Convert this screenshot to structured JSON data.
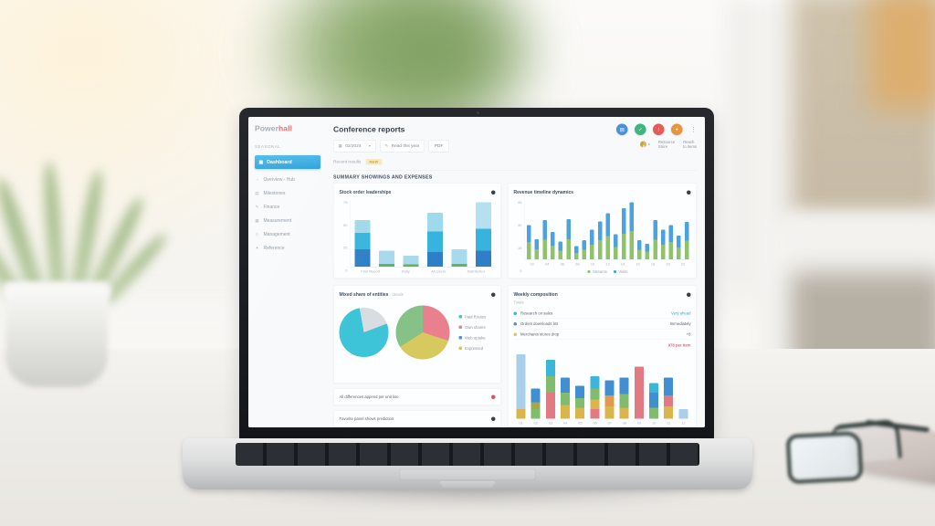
{
  "brand": {
    "part1": "Power",
    "part2": "hall"
  },
  "topbar": {
    "title": "Conference reports",
    "action_icons": [
      {
        "name": "chart-icon",
        "color": "#4a90d9",
        "glyph": "▤"
      },
      {
        "name": "check-icon",
        "color": "#3cb87f",
        "glyph": "✓"
      },
      {
        "name": "alert-icon",
        "color": "#e25c5c",
        "glyph": "!"
      },
      {
        "name": "star-icon",
        "color": "#e89540",
        "glyph": "✦"
      }
    ],
    "overflow": "⋮",
    "account_caret": "▾",
    "account": [
      {
        "line1": "Resource",
        "line2": "Store"
      },
      {
        "line1": "Reach",
        "line2": "to items"
      }
    ]
  },
  "filters": {
    "date": {
      "icon": "▦",
      "label": "02/2024",
      "caret": "▾"
    },
    "range": {
      "icon": "✎",
      "label": "Read this year"
    },
    "export": {
      "label": "PDF"
    }
  },
  "sidebar": {
    "section": "SEASONAL",
    "active": {
      "glyph": "▣",
      "label": "Dashboard"
    },
    "items": [
      {
        "glyph": "◔",
        "label": "Overview - Hub"
      },
      {
        "glyph": "▤",
        "label": "Milestones"
      },
      {
        "glyph": "✎",
        "label": "Finance"
      },
      {
        "glyph": "▦",
        "label": "Measurement"
      },
      {
        "glyph": "◇",
        "label": "Management"
      },
      {
        "glyph": "✦",
        "label": "Reference"
      }
    ]
  },
  "meta": {
    "label": "Recent results",
    "badge": "NEW"
  },
  "section_heading": "SUMMARY SHOWINGS AND EXPENSES",
  "panels": {
    "a": {
      "title": "Stock order leaderships"
    },
    "b": {
      "title": "Revenue timeline dynamics"
    },
    "c": {
      "title": "Mixed share of entities",
      "subtitle": "details",
      "rows": [
        {
          "text": "All differences append per unit line",
          "dot": "#d8545c"
        },
        {
          "text": "Favorite panel shows prediction",
          "dot": "#3a4049"
        }
      ]
    },
    "d": {
      "title": "Weekly composition",
      "subtitle": "Totals",
      "rows": [
        {
          "bullet": "#3ab7d8",
          "label": "Research on sales",
          "value": "Very ahead",
          "value_color": "#3aa0dc"
        },
        {
          "bullet": "#4a90d9",
          "label": "Orders downloads list",
          "value": "Immediately",
          "value_color": "#55606c"
        },
        {
          "bullet": "#e0c34a",
          "label": "Merchants stores drop",
          "value": "+8",
          "value_color": "#55606c"
        }
      ],
      "link": "978 per item"
    }
  },
  "chart_data": [
    {
      "id": "a",
      "type": "bar",
      "stacked": true,
      "title": "Stock order leaderships",
      "y_ticks": [
        "75",
        "50",
        "25",
        "0"
      ],
      "x_labels": [
        "First Report",
        "Daily",
        "All Users",
        "Distributed"
      ],
      "ylim": [
        0,
        100
      ],
      "grid": false,
      "bars": [
        {
          "segments": [
            [
              "#2e7fc6",
              24
            ],
            [
              "#36b4de",
              22
            ],
            [
              "#9fd9ec",
              18
            ]
          ]
        },
        {
          "segments": [
            [
              "#5cb85c",
              4
            ],
            [
              "#a9d9ec",
              18
            ]
          ]
        },
        {
          "segments": [
            [
              "#5cb85c",
              3
            ],
            [
              "#a9d9ec",
              12
            ]
          ]
        },
        {
          "segments": [
            [
              "#2e7fc6",
              20
            ],
            [
              "#36b4de",
              28
            ],
            [
              "#9fd9ec",
              26
            ]
          ]
        },
        {
          "segments": [
            [
              "#5cb85c",
              4
            ],
            [
              "#a9d9ec",
              20
            ]
          ]
        },
        {
          "segments": [
            [
              "#2e7fc6",
              22
            ],
            [
              "#36b4de",
              30
            ],
            [
              "#b5e0f0",
              36
            ]
          ]
        }
      ]
    },
    {
      "id": "b",
      "type": "bar",
      "stacked": true,
      "title": "Revenue timeline dynamics",
      "y_ticks": [
        "45",
        "30",
        "15",
        "0"
      ],
      "x_labels": [
        "02",
        "04",
        "06",
        "08",
        "10",
        "12",
        "14",
        "16",
        "18",
        "20",
        "22"
      ],
      "ylim": [
        0,
        100
      ],
      "grid": false,
      "green": "#8fc36a",
      "blue": "#4aa3dd",
      "green_ratio": 0.5,
      "values": [
        58,
        34,
        66,
        46,
        30,
        68,
        22,
        32,
        50,
        64,
        78,
        42,
        86,
        96,
        32,
        26,
        66,
        50,
        58,
        40,
        63
      ],
      "legend": [
        {
          "color": "#8fc36a",
          "label": "Streams"
        },
        {
          "color": "#4aa3dd",
          "label": "Visits"
        }
      ],
      "legend_position": "bottom"
    },
    {
      "id": "c",
      "type": "pie",
      "title": "Mixed share of entities",
      "pies": [
        {
          "name": "left",
          "size": 108,
          "start": 350,
          "slices": [
            {
              "color": "#d8dde2",
              "value": 22
            },
            {
              "color": "#3dc4d8",
              "value": 78
            }
          ]
        },
        {
          "name": "right",
          "size": 118,
          "start": 0,
          "slices": [
            {
              "color": "#e8808d",
              "value": 30
            },
            {
              "color": "#d6c95e",
              "value": 36
            },
            {
              "color": "#86c288",
              "value": 34
            }
          ]
        }
      ],
      "legend": [
        {
          "color": "#3dc4d8",
          "label": "Paid Routes"
        },
        {
          "color": "#e8808d",
          "label": "Own shares"
        },
        {
          "color": "#4a90d9",
          "label": "Web uptake"
        },
        {
          "color": "#e0c34a",
          "label": "Expressed"
        }
      ],
      "legend_position": "right"
    },
    {
      "id": "d",
      "type": "bar",
      "stacked": true,
      "title": "Weekly composition",
      "x_labels": [
        "01",
        "02",
        "03",
        "04",
        "05",
        "06",
        "07",
        "08",
        "09",
        "10",
        "11",
        "12"
      ],
      "ylim": [
        0,
        100
      ],
      "grid": false,
      "bars": [
        {
          "segments": [
            [
              "#d9b54a",
              14
            ],
            [
              "#aacfe8",
              80
            ]
          ]
        },
        {
          "segments": [
            [
              "#7fbc6b",
              14
            ],
            [
              "#a3a84f",
              10
            ],
            [
              "#3f8fd2",
              20
            ]
          ]
        },
        {
          "segments": [
            [
              "#e27a84",
              38
            ],
            [
              "#7fbc6b",
              24
            ],
            [
              "#3ab7d8",
              24
            ]
          ]
        },
        {
          "segments": [
            [
              "#d9b54a",
              20
            ],
            [
              "#7fbc6b",
              18
            ],
            [
              "#3f8fd2",
              22
            ]
          ]
        },
        {
          "segments": [
            [
              "#d9b54a",
              16
            ],
            [
              "#7fbc6b",
              14
            ],
            [
              "#3f8fd2",
              18
            ]
          ]
        },
        {
          "segments": [
            [
              "#e27a84",
              14
            ],
            [
              "#d9b54a",
              14
            ],
            [
              "#7fbc6b",
              16
            ],
            [
              "#3ab7d8",
              18
            ]
          ]
        },
        {
          "segments": [
            [
              "#d9b54a",
              18
            ],
            [
              "#e09a4a",
              16
            ],
            [
              "#3f8fd2",
              22
            ]
          ]
        },
        {
          "segments": [
            [
              "#d9b54a",
              16
            ],
            [
              "#7fbc6b",
              20
            ],
            [
              "#3f8fd2",
              24
            ]
          ]
        },
        {
          "segments": [
            [
              "#e27a84",
              76
            ]
          ]
        },
        {
          "segments": [
            [
              "#7fbc6b",
              16
            ],
            [
              "#3f8fd2",
              22
            ],
            [
              "#3ab7d8",
              14
            ]
          ]
        },
        {
          "segments": [
            [
              "#d9b54a",
              18
            ],
            [
              "#e27a84",
              16
            ],
            [
              "#3f8fd2",
              26
            ]
          ]
        },
        {
          "segments": [
            [
              "#aacfe8",
              14
            ]
          ]
        }
      ]
    }
  ]
}
